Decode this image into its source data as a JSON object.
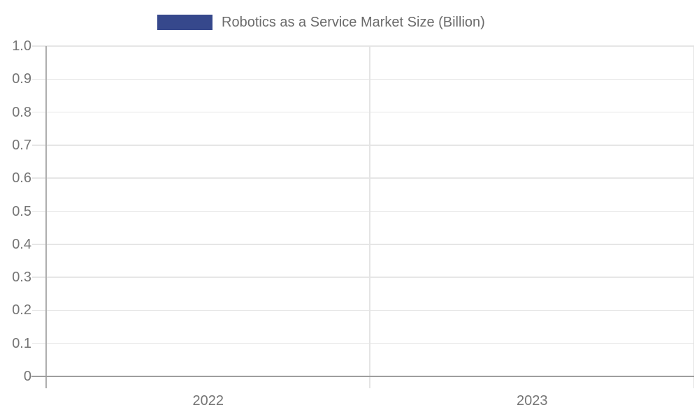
{
  "legend": {
    "swatch_color": "#36488C",
    "label": "Robotics as a Service Market Size (Billion)"
  },
  "axes": {
    "y_tick_labels": [
      "1.0",
      "0.9",
      "0.8",
      "0.7",
      "0.6",
      "0.5",
      "0.4",
      "0.3",
      "0.2",
      "0.1",
      "0"
    ],
    "x_tick_labels": [
      "2022",
      "2023"
    ]
  },
  "colors": {
    "gridline": "#e6e6e6",
    "axis_line": "#aeaeae",
    "baseline": "#9e9e9e",
    "tick_label": "#757575",
    "legend_text": "#6b6b6b",
    "background": "#ffffff"
  },
  "chart_data": {
    "type": "bar",
    "title": "Robotics as a Service Market Size (Billion)",
    "categories": [
      "2022",
      "2023"
    ],
    "series": [
      {
        "name": "Robotics as a Service Market Size (Billion)",
        "values": [
          null,
          null
        ]
      }
    ],
    "xlabel": "",
    "ylabel": "",
    "ylim": [
      0,
      1.0
    ],
    "y_tick_step": 0.1,
    "grid": true,
    "legend_position": "top",
    "note_visible_bars": "no bars rendered in plot area"
  }
}
